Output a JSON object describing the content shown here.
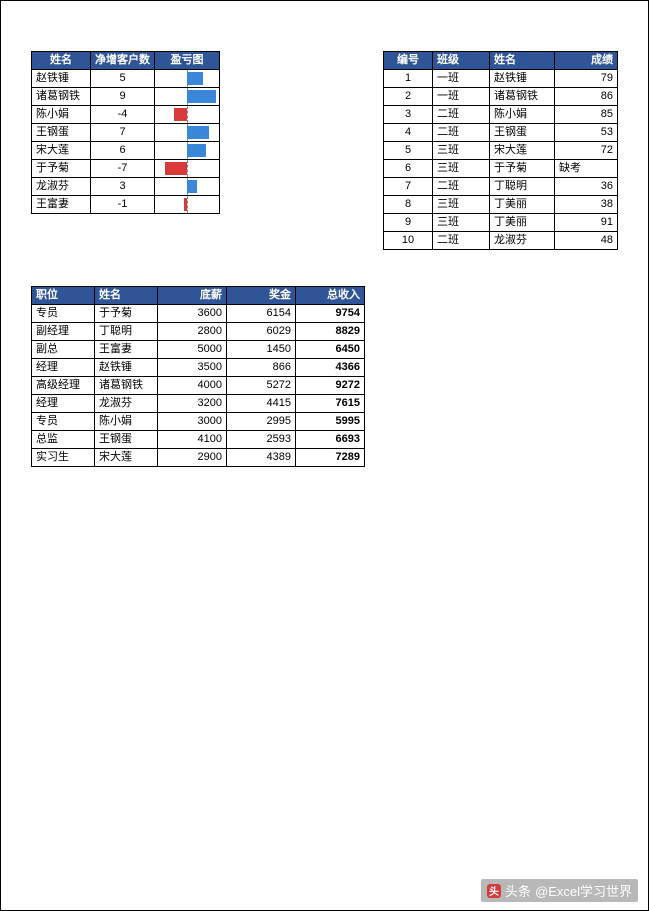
{
  "tableA": {
    "headers": [
      "姓名",
      "净增客户数",
      "盈亏图"
    ],
    "bar_colors": {
      "positive": "#3a86d8",
      "negative": "#d83a3a",
      "zero_line": "#888888"
    },
    "max_abs": 10,
    "rows": [
      {
        "name": "赵铁锤",
        "value": 5
      },
      {
        "name": "诸葛钢铁",
        "value": 9
      },
      {
        "name": "陈小娟",
        "value": -4
      },
      {
        "name": "王钢蛋",
        "value": 7
      },
      {
        "name": "宋大莲",
        "value": 6
      },
      {
        "name": "于予菊",
        "value": -7
      },
      {
        "name": "龙淑芬",
        "value": 3
      },
      {
        "name": "王富妻",
        "value": -1
      }
    ]
  },
  "tableB": {
    "headers": [
      "编号",
      "班级",
      "姓名",
      "成绩"
    ],
    "rows": [
      {
        "no": 1,
        "class": "一班",
        "name": "赵铁锤",
        "score": 79
      },
      {
        "no": 2,
        "class": "一班",
        "name": "诸葛钢铁",
        "score": 86
      },
      {
        "no": 3,
        "class": "二班",
        "name": "陈小娟",
        "score": 85
      },
      {
        "no": 4,
        "class": "二班",
        "name": "王钢蛋",
        "score": 53
      },
      {
        "no": 5,
        "class": "三班",
        "name": "宋大莲",
        "score": 72
      },
      {
        "no": 6,
        "class": "三班",
        "name": "于予菊",
        "score": "缺考",
        "is_text": true
      },
      {
        "no": 7,
        "class": "二班",
        "name": "丁聪明",
        "score": 36
      },
      {
        "no": 8,
        "class": "三班",
        "name": "丁美丽",
        "score": 38
      },
      {
        "no": 9,
        "class": "三班",
        "name": "丁美丽",
        "score": 91
      },
      {
        "no": 10,
        "class": "二班",
        "name": "龙淑芬",
        "score": 48
      }
    ]
  },
  "tableC": {
    "headers": [
      "职位",
      "姓名",
      "底薪",
      "奖金",
      "总收入"
    ],
    "rows": [
      {
        "pos": "专员",
        "name": "于予菊",
        "base": 3600,
        "bonus": 6154,
        "total": 9754
      },
      {
        "pos": "副经理",
        "name": "丁聪明",
        "base": 2800,
        "bonus": 6029,
        "total": 8829
      },
      {
        "pos": "副总",
        "name": "王富妻",
        "base": 5000,
        "bonus": 1450,
        "total": 6450
      },
      {
        "pos": "经理",
        "name": "赵铁锤",
        "base": 3500,
        "bonus": 866,
        "total": 4366
      },
      {
        "pos": "高级经理",
        "name": "诸葛钢铁",
        "base": 4000,
        "bonus": 5272,
        "total": 9272
      },
      {
        "pos": "经理",
        "name": "龙淑芬",
        "base": 3200,
        "bonus": 4415,
        "total": 7615
      },
      {
        "pos": "专员",
        "name": "陈小娟",
        "base": 3000,
        "bonus": 2995,
        "total": 5995
      },
      {
        "pos": "总监",
        "name": "王钢蛋",
        "base": 4100,
        "bonus": 2593,
        "total": 6693
      },
      {
        "pos": "实习生",
        "name": "宋大莲",
        "base": 2900,
        "bonus": 4389,
        "total": 7289
      }
    ]
  },
  "watermark": {
    "prefix": "头条",
    "text": "@Excel学习世界"
  },
  "colors": {
    "header_bg": "#2f5597",
    "header_fg": "#ffffff",
    "border": "#000000"
  }
}
